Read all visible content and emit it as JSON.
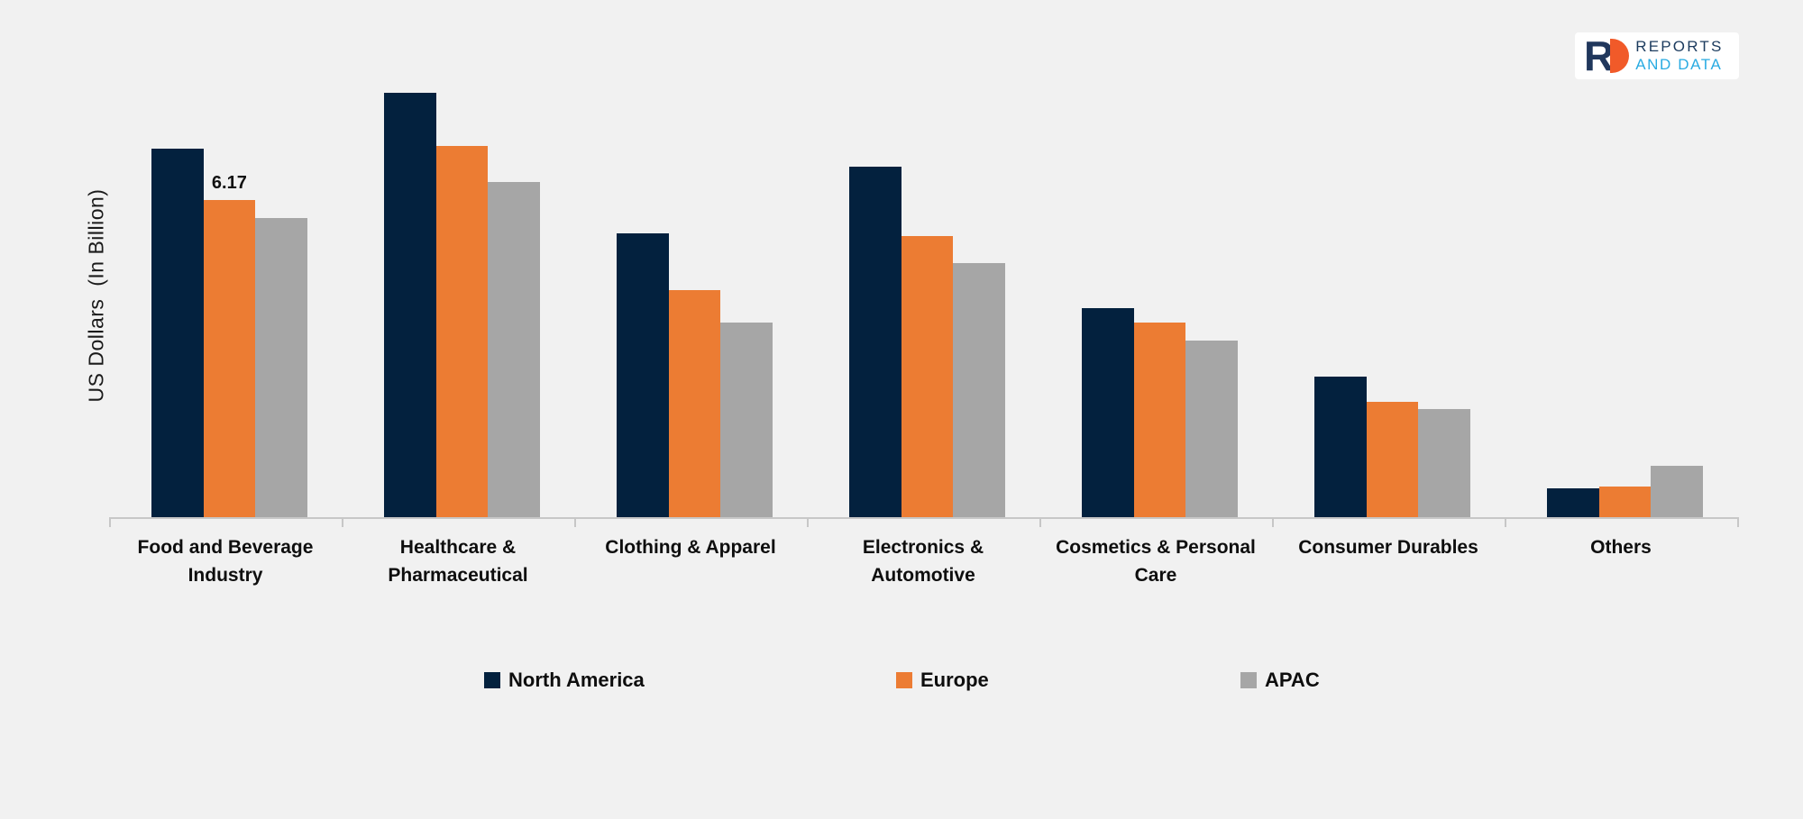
{
  "page": {
    "background_color": "#f1f1f1",
    "axis_color": "#c7c7c7"
  },
  "logo": {
    "mark_letter": "R",
    "line1": "REPORTS",
    "line2": "AND DATA",
    "colors": {
      "mark_r": "#20375c",
      "mark_d": "#f15a29",
      "line1": "#1c3b5e",
      "line2": "#29abe2",
      "box": "#ffffff"
    }
  },
  "chart_data": {
    "type": "bar",
    "title": "",
    "xlabel": "",
    "ylabel": "US Dollars  (In Billion)",
    "ylim": [
      0,
      9
    ],
    "grid": false,
    "legend_position": "bottom",
    "categories": [
      "Food and Beverage\nIndustry",
      "Healthcare &\nPharmaceutical",
      "Clothing & Apparel",
      "Electronics &\nAutomotive",
      "Cosmetics & Personal\nCare",
      "Consumer Durables",
      "Others"
    ],
    "series": [
      {
        "name": "North America",
        "color": "#03213e",
        "values": [
          7.17,
          8.25,
          5.52,
          6.82,
          4.07,
          2.74,
          0.56
        ]
      },
      {
        "name": "Europe",
        "color": "#ec7c33",
        "values": [
          6.17,
          7.22,
          4.42,
          5.47,
          3.79,
          2.24,
          0.59
        ]
      },
      {
        "name": "APAC",
        "color": "#a6a6a6",
        "values": [
          5.82,
          6.52,
          3.79,
          4.95,
          3.44,
          2.1,
          1.0
        ]
      }
    ],
    "data_labels": [
      {
        "category_index": 0,
        "series_index": 1,
        "text": "6.17"
      }
    ]
  }
}
